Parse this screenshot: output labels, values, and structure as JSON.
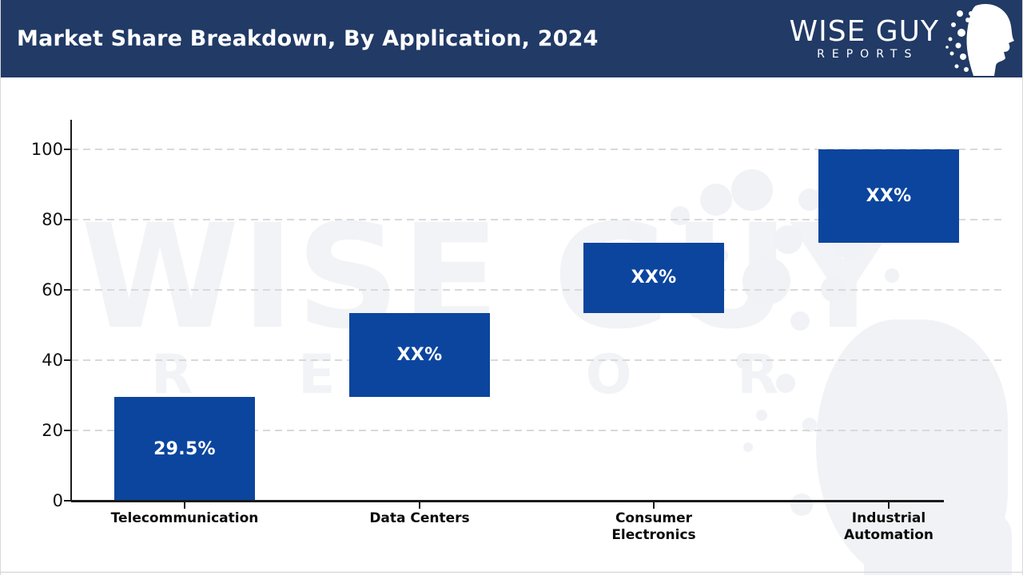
{
  "header": {
    "title": "Market Share Breakdown, By Application, 2024",
    "logo": {
      "name": "WISE GUY",
      "sub": "REPORTS"
    }
  },
  "watermark": {
    "big": "WISE GUY",
    "sub": "R E P O R T S"
  },
  "chart_data": {
    "type": "bar",
    "subtype": "waterfall-floating-segments",
    "title": "Market Share Breakdown, By Application, 2024",
    "categories": [
      "Telecommunication",
      "Data Centers",
      "Consumer Electronics",
      "Industrial Automation"
    ],
    "segments": [
      {
        "category": "Telecommunication",
        "label_lines": [
          "Telecommunication"
        ],
        "start": 0,
        "end": 29.5,
        "value_label": "29.5%"
      },
      {
        "category": "Data Centers",
        "label_lines": [
          "Data Centers"
        ],
        "start": 29.5,
        "end": 53.4,
        "value_label": "XX%"
      },
      {
        "category": "Consumer Electronics",
        "label_lines": [
          "Consumer",
          "Electronics"
        ],
        "start": 53.4,
        "end": 73.5,
        "value_label": "XX%"
      },
      {
        "category": "Industrial Automation",
        "label_lines": [
          "Industrial",
          "Automation"
        ],
        "start": 73.5,
        "end": 100,
        "value_label": "XX%"
      }
    ],
    "ylim": [
      0,
      100
    ],
    "yticks": [
      0,
      20,
      40,
      60,
      80,
      100
    ],
    "grid": "horizontal-dashed",
    "legend": "none",
    "bar_color": "#0c459e",
    "value_label_color": "#ffffff",
    "axis_color": "#1a1a1a",
    "grid_color": "#d9d9d9"
  },
  "colors": {
    "header_bg": "#213a66",
    "watermark": "#f2f3f6",
    "frame_border": "#d8d8d8",
    "background": "#ffffff"
  }
}
